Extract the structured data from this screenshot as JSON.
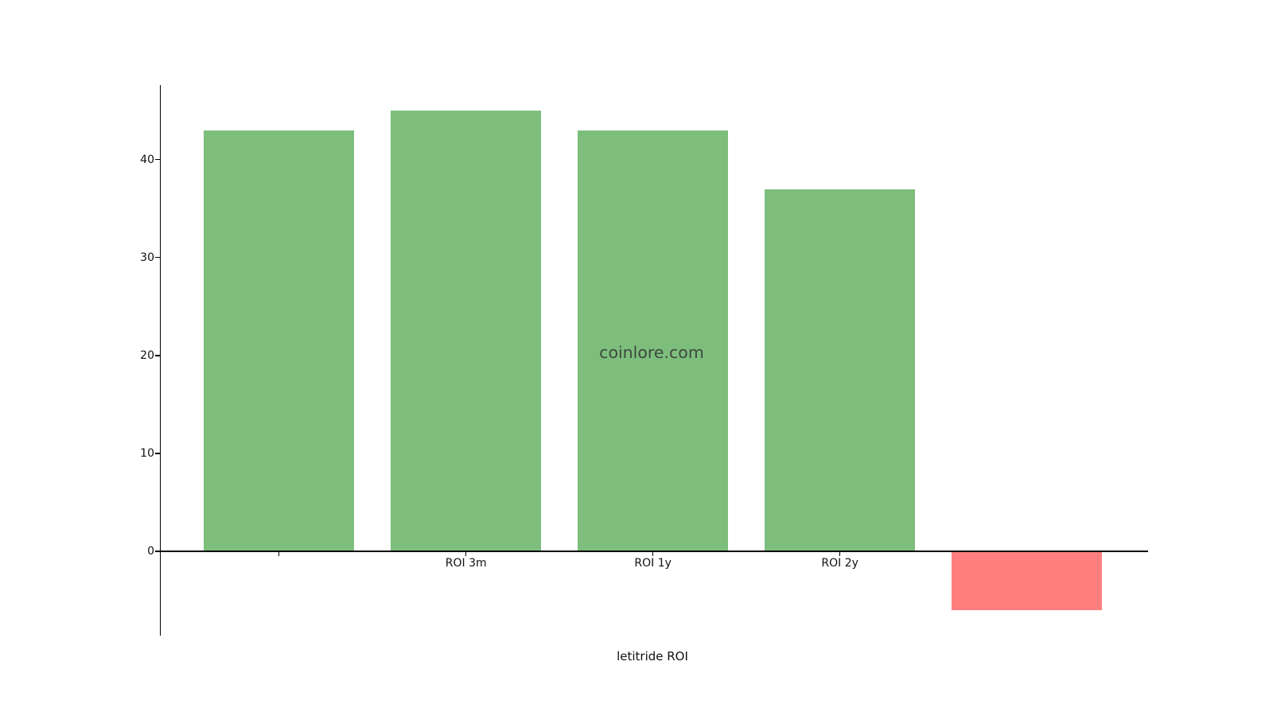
{
  "page": {
    "background": "#ffffff"
  },
  "chart_data": {
    "type": "bar",
    "title": "letitride ROI",
    "xlabel": "letitride ROI",
    "ylabel": "",
    "watermark": "coinlore.com",
    "categories": [
      "",
      "ROI 3m",
      "ROI 1y",
      "ROI 2y",
      ""
    ],
    "values": [
      43,
      45,
      43,
      37,
      -6
    ],
    "series": [
      {
        "name": "letitride ROI",
        "values": [
          43,
          45,
          43,
          37,
          -6
        ]
      }
    ],
    "bar_colors": [
      "#7DBE7D",
      "#7DBE7D",
      "#7DBE7D",
      "#7DBE7D",
      "#FF7F7F"
    ],
    "positive_color": "#7DBE7D",
    "negative_color": "#FF7F7F",
    "axis_color": "#000000",
    "text_color": "#111111",
    "yticks": [
      0,
      10,
      20,
      30,
      40
    ],
    "ylim": [
      -8.6,
      47.6
    ],
    "grid": false,
    "legend": null
  }
}
